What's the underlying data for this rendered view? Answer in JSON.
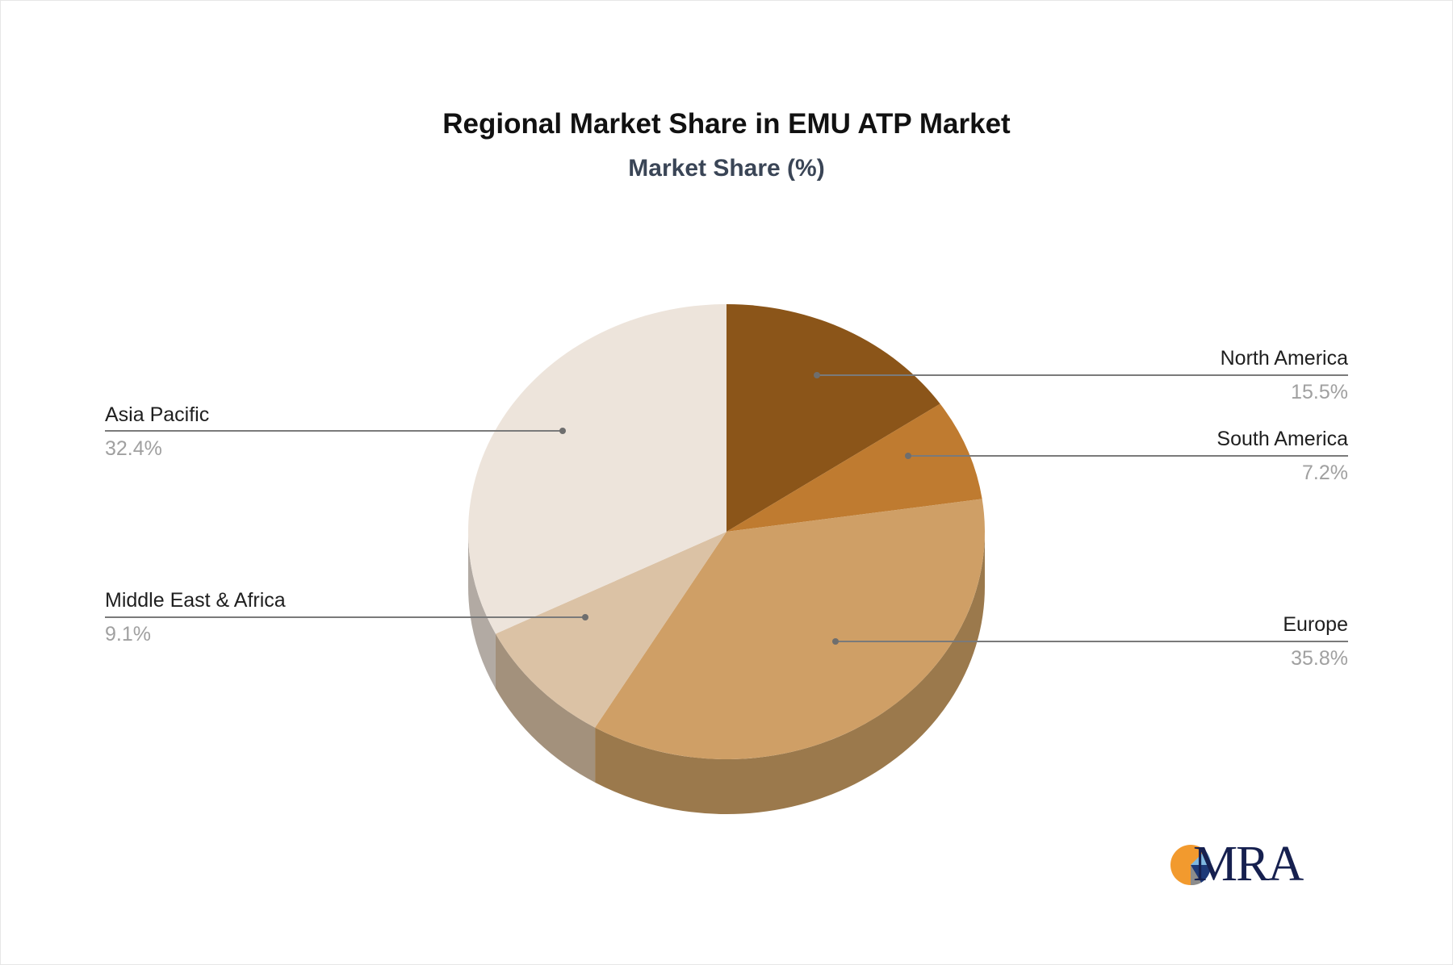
{
  "header": {
    "title": "Regional Market Share in EMU ATP Market",
    "subtitle": "Market Share (%)"
  },
  "slices": [
    {
      "name": "North America",
      "value_label": "15.5%",
      "color": "#8b5519",
      "side_color": "#6e4414"
    },
    {
      "name": "South America",
      "value_label": "7.2%",
      "color": "#bf7b30",
      "side_color": "#9a6327"
    },
    {
      "name": "Europe",
      "value_label": "35.8%",
      "color": "#cf9f66",
      "side_color": "#9b794c"
    },
    {
      "name": "Middle East & Africa",
      "value_label": "9.1%",
      "color": "#dbc2a5",
      "side_color": "#a3917c"
    },
    {
      "name": "Asia Pacific",
      "value_label": "32.4%",
      "color": "#ede4db",
      "side_color": "#b2aaa3"
    }
  ],
  "logo": {
    "text": "MRA",
    "colors": [
      "#f29a2e",
      "#7fb8e0",
      "#1e3a78",
      "#8c8c8c"
    ]
  },
  "chart_data": {
    "type": "pie",
    "title": "Regional Market Share in EMU ATP Market",
    "subtitle": "Market Share (%)",
    "categories": [
      "North America",
      "South America",
      "Europe",
      "Middle East & Africa",
      "Asia Pacific"
    ],
    "values": [
      15.5,
      7.2,
      35.8,
      9.1,
      32.4
    ],
    "unit": "%",
    "style": "3d",
    "legend": "callout-labels"
  }
}
